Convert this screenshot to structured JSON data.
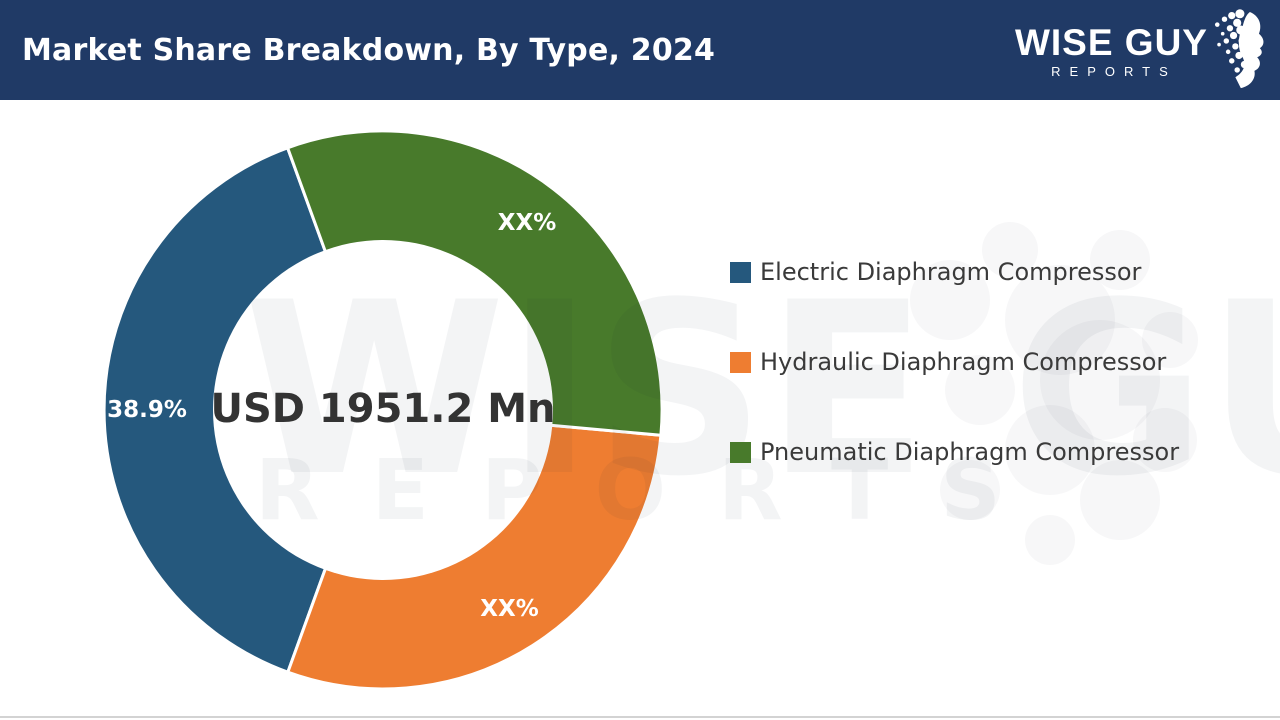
{
  "header": {
    "title": "Market Share Breakdown, By Type, 2024",
    "brand": {
      "name": "WISE GUY",
      "subtitle": "REPORTS"
    }
  },
  "chart_data": {
    "type": "pie",
    "subtype": "donut",
    "title": "Market Share Breakdown, By Type, 2024",
    "center_label": "USD 1951.2 Mn",
    "start_angle_deg": 110,
    "direction": "counterclockwise",
    "slices": [
      {
        "name": "Electric Diaphragm Compressor",
        "label": "38.9%",
        "value": 38.9,
        "estimated": false,
        "color": "#25587D"
      },
      {
        "name": "Hydraulic Diaphragm Compressor",
        "label": "XX%",
        "value": 29.1,
        "estimated": true,
        "color": "#EE7D31"
      },
      {
        "name": "Pneumatic Diaphragm Compressor",
        "label": "XX%",
        "value": 32.0,
        "estimated": true,
        "color": "#487A2B"
      }
    ],
    "legend_position": "right"
  },
  "legend": {
    "items": [
      {
        "label": "Electric Diaphragm Compressor",
        "color": "#25587D"
      },
      {
        "label": "Hydraulic Diaphragm Compressor",
        "color": "#EE7D31"
      },
      {
        "label": "Pneumatic Diaphragm Compressor",
        "color": "#487A2B"
      }
    ]
  },
  "watermark": {
    "line1": "WISE GUY",
    "line2": "REPORTS"
  },
  "colors": {
    "header_bg": "#203A66",
    "center_text": "#333333",
    "legend_text": "#3A3A3A",
    "slice_label": "#FFFFFF",
    "bottom_line": "#D3D3D3"
  }
}
